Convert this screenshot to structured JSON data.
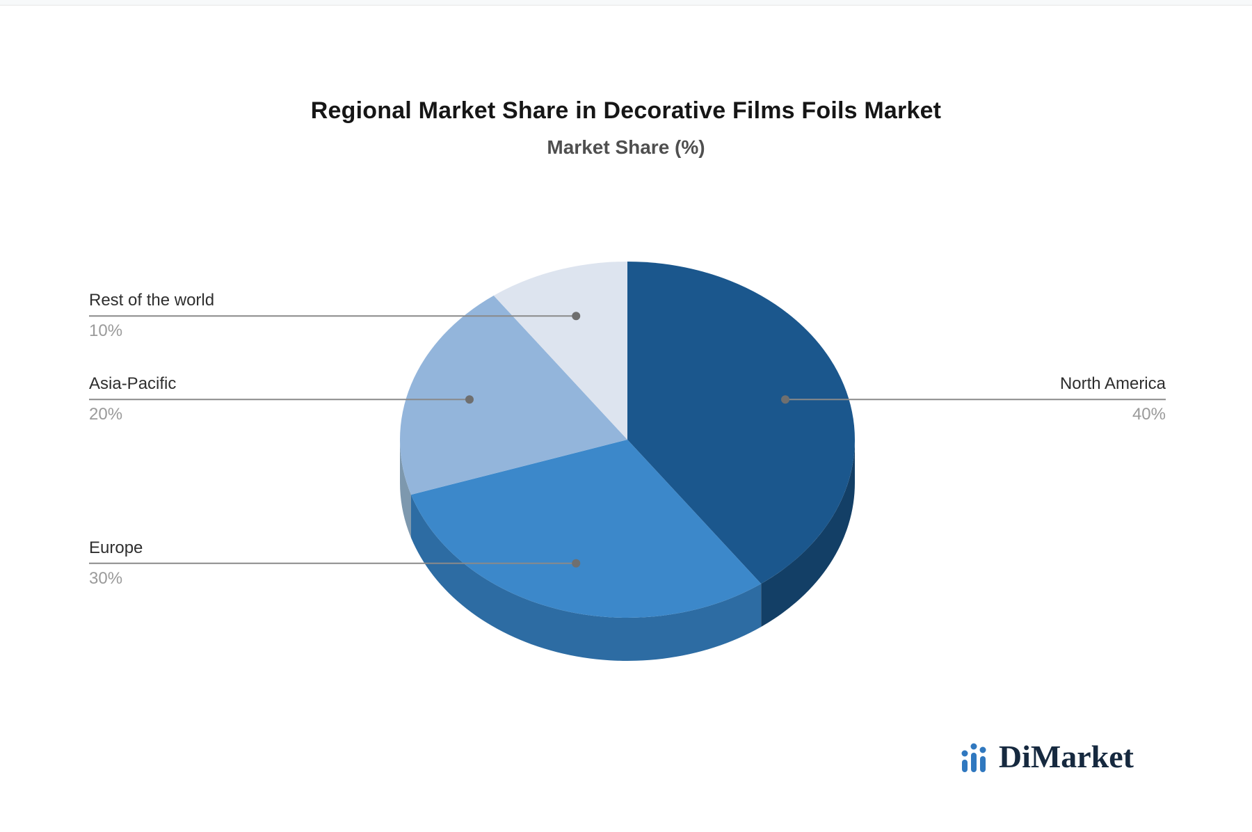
{
  "chart_data": {
    "type": "pie",
    "style": "3d",
    "title": "Regional Market Share in Decorative Films Foils Market",
    "subtitle": "Market Share (%)",
    "unit": "%",
    "start_angle": "12-oclock",
    "direction": "clockwise",
    "legend_position": "none",
    "connector_color": "#8a8a8a",
    "connector_dot_color": "#6f6f6f",
    "slices": [
      {
        "label": "North America",
        "value": 40,
        "display": "40%",
        "color": "#1b578d",
        "side_color": "#133f66",
        "label_side": "right"
      },
      {
        "label": "Europe",
        "value": 30,
        "display": "30%",
        "color": "#3c88ca",
        "side_color": "#2d6ca3",
        "label_side": "left"
      },
      {
        "label": "Asia-Pacific",
        "value": 20,
        "display": "20%",
        "color": "#93b5db",
        "side_color": "#7d98ae",
        "label_side": "left"
      },
      {
        "label": "Rest of the world",
        "value": 10,
        "display": "10%",
        "color": "#dde4ef",
        "side_color": "#c3cedd",
        "label_side": "left"
      }
    ],
    "label_name_color": "#2e2e2e",
    "label_value_color": "#9a9a9a"
  },
  "branding": {
    "logo_text": "DiMarket",
    "logo_icon": "bar-chart-dots-icon",
    "logo_icon_color": "#3078bf",
    "logo_text_color": "#16293f"
  }
}
